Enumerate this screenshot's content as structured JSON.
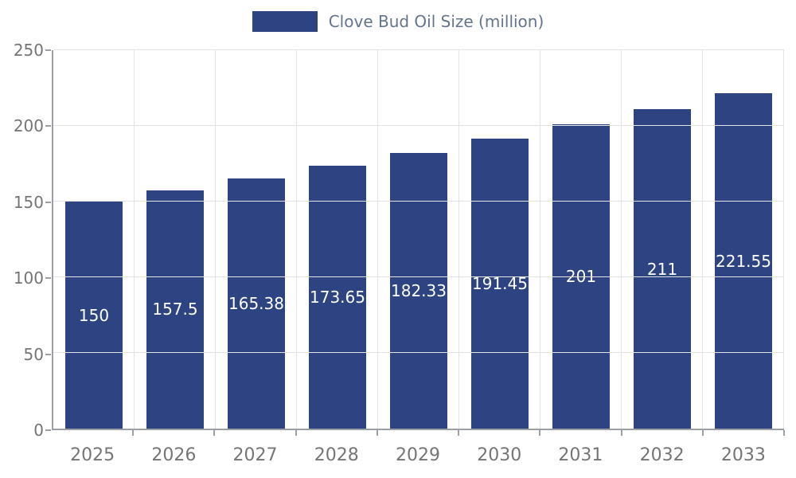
{
  "chart_data": {
    "type": "bar",
    "title": "Clove Bud Oil Size (million)",
    "legend": {
      "label": "Clove Bud Oil Size (million)",
      "position": "top-center"
    },
    "categories": [
      "2025",
      "2026",
      "2027",
      "2028",
      "2029",
      "2030",
      "2031",
      "2032",
      "2033"
    ],
    "series": [
      {
        "name": "Clove Bud Oil Size (million)",
        "values": [
          150,
          157.5,
          165.38,
          173.65,
          182.33,
          191.45,
          201,
          211,
          221.55
        ]
      }
    ],
    "value_labels": [
      "150",
      "157.5",
      "165.38",
      "173.65",
      "182.33",
      "191.45",
      "201",
      "211",
      "221.55"
    ],
    "value_label_position": "inside-center",
    "xlabel": "",
    "ylabel": "",
    "ylim": [
      0,
      250
    ],
    "yticks": [
      0,
      50,
      100,
      150,
      200,
      250
    ],
    "grid": true,
    "colors": {
      "bar": "#2e4482",
      "value_label": "#ffffff",
      "axis_text": "#757575",
      "legend_text": "#64748b",
      "gridline": "#e3e3e3",
      "axis_line": "#9aa0a6",
      "background": "#ffffff"
    }
  }
}
